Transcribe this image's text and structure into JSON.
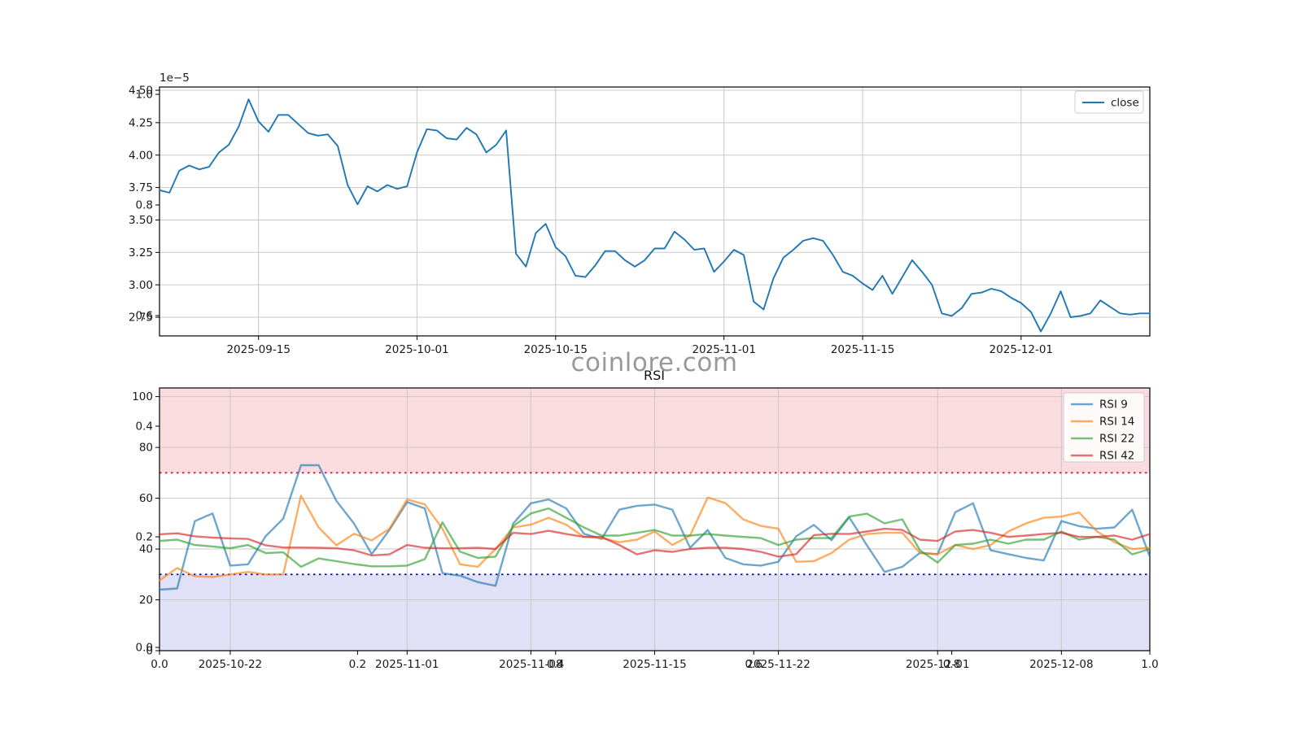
{
  "watermark": "coinlore.com",
  "colors": {
    "close": "#1f77b4",
    "rsi9": "#1f77b4",
    "rsi14": "#ff7f0e",
    "rsi22": "#2ca02c",
    "rsi42": "#d62728",
    "overbought_band": "#fbdcde",
    "oversold_band": "#e0e0f6",
    "overbought_line": "#dc143c",
    "oversold_line": "#0000cd",
    "grid": "#c9c9c9",
    "spine": "#000000",
    "legend_border": "#cccccc",
    "watermark_color": "#999999"
  },
  "overlay_axis": {
    "x_tick_labels": [
      "0.0",
      "0.2",
      "0.4",
      "0.6",
      "0.8",
      "1.0"
    ],
    "y_tick_labels": [
      "1.0",
      "0.8",
      "0.6",
      "0.4",
      "0.2",
      "0.0"
    ]
  },
  "chart_data": [
    {
      "type": "line",
      "title": "",
      "y_offset_label": "1e−5",
      "value_scale": "1e-5",
      "x_range": [
        "2025-09-05",
        "2025-12-14"
      ],
      "x_tick_labels": [
        "2025-09-15",
        "2025-10-01",
        "2025-10-15",
        "2025-11-01",
        "2025-11-15",
        "2025-12-01"
      ],
      "x_tick_day_indices": [
        10,
        26,
        40,
        57,
        71,
        87
      ],
      "y_ticks": [
        2.75,
        3.0,
        3.25,
        3.5,
        3.75,
        4.0,
        4.25,
        4.5
      ],
      "ylim": [
        2.606,
        4.525
      ],
      "grid": true,
      "legend_position": "upper right",
      "series": [
        {
          "name": "close",
          "values": [
            3.73,
            3.71,
            3.88,
            3.92,
            3.89,
            3.91,
            4.02,
            4.08,
            4.22,
            4.43,
            4.26,
            4.18,
            4.31,
            4.31,
            4.24,
            4.17,
            4.15,
            4.16,
            4.07,
            3.77,
            3.62,
            3.76,
            3.72,
            3.77,
            3.74,
            3.76,
            4.02,
            4.2,
            4.19,
            4.13,
            4.12,
            4.21,
            4.16,
            4.02,
            4.08,
            4.19,
            3.24,
            3.14,
            3.4,
            3.47,
            3.29,
            3.22,
            3.07,
            3.06,
            3.15,
            3.26,
            3.26,
            3.19,
            3.14,
            3.19,
            3.28,
            3.28,
            3.41,
            3.35,
            3.27,
            3.28,
            3.1,
            3.18,
            3.27,
            3.23,
            2.87,
            2.81,
            3.05,
            3.21,
            3.27,
            3.34,
            3.36,
            3.34,
            3.23,
            3.1,
            3.07,
            3.01,
            2.96,
            3.07,
            2.93,
            3.06,
            3.19,
            3.1,
            3.0,
            2.78,
            2.76,
            2.82,
            2.93,
            2.94,
            2.97,
            2.95,
            2.9,
            2.86,
            2.79,
            2.64,
            2.78,
            2.95,
            2.75,
            2.76,
            2.78,
            2.88,
            2.83,
            2.78,
            2.77,
            2.78,
            2.78
          ]
        }
      ]
    },
    {
      "type": "line",
      "title": "RSI",
      "x_range": [
        "2025-10-18",
        "2025-12-13"
      ],
      "x_tick_labels": [
        "2025-10-22",
        "2025-11-01",
        "2025-11-08",
        "2025-11-15",
        "2025-11-22",
        "2025-12-01",
        "2025-12-08"
      ],
      "x_tick_day_indices": [
        4,
        14,
        21,
        28,
        35,
        44,
        51
      ],
      "y_ticks": [
        0,
        20,
        40,
        60,
        80,
        100
      ],
      "ylim": [
        0,
        103.4
      ],
      "grid": true,
      "overbought_level": 70,
      "oversold_level": 30,
      "legend_position": "upper right",
      "series": [
        {
          "name": "RSI 9",
          "values": [
            24,
            24.5,
            51,
            54,
            33.5,
            34,
            45,
            52,
            73,
            73,
            59,
            50,
            38,
            47.5,
            58.5,
            56,
            30.5,
            29.5,
            27,
            25.5,
            50,
            58,
            59.5,
            56,
            46,
            44,
            55.5,
            57,
            57.5,
            55.5,
            40.5,
            47.5,
            36.5,
            34,
            33.5,
            35,
            45,
            49.5,
            43.5,
            52.5,
            41.5,
            31,
            33,
            38.5,
            38,
            54.5,
            58,
            39.5,
            38,
            36.5,
            35.5,
            51,
            49,
            48,
            48.5,
            55.5,
            37
          ]
        },
        {
          "name": "RSI 14",
          "values": [
            27.7,
            32.5,
            29.3,
            29,
            30,
            31,
            30,
            30,
            61,
            48.5,
            41.5,
            46,
            43.4,
            48,
            59.5,
            57.6,
            48,
            34,
            33,
            40,
            48.5,
            49.6,
            52.3,
            49.6,
            44.8,
            44.3,
            42.7,
            43.7,
            46.9,
            41.6,
            45.3,
            60.3,
            58.1,
            51.7,
            49.1,
            48,
            35,
            35.2,
            38.4,
            43.7,
            45.9,
            46.4,
            46.4,
            38.4,
            37.9,
            41.6,
            40,
            41.6,
            46.9,
            50.1,
            52.3,
            52.8,
            54.4,
            47,
            42.7,
            40,
            40.5
          ]
        },
        {
          "name": "RSI 22",
          "values": [
            43.2,
            43.7,
            41.6,
            41,
            40.3,
            41.6,
            38.4,
            38.7,
            33,
            36.3,
            35.2,
            34.1,
            33.2,
            33.2,
            33.5,
            36,
            50.5,
            39,
            36.5,
            37,
            49,
            54,
            56,
            52.3,
            48.5,
            45.3,
            45.3,
            46.4,
            47.5,
            45.3,
            45.3,
            45.9,
            45.3,
            44.8,
            44.3,
            41.6,
            43.7,
            44.3,
            44.3,
            52.8,
            53.9,
            50.1,
            51.7,
            39.5,
            34.7,
            41.6,
            42.1,
            43.7,
            42.1,
            43.7,
            43.7,
            46.9,
            43.7,
            44.8,
            43.7,
            37.9,
            40
          ]
        },
        {
          "name": "RSI 42",
          "values": [
            45.8,
            46.2,
            45,
            44.5,
            44.2,
            44,
            41.5,
            40.6,
            40.6,
            40.5,
            40.3,
            39.5,
            37.5,
            37.9,
            41.6,
            40.5,
            40.3,
            40.3,
            40.5,
            40,
            46.4,
            45.9,
            47.2,
            45.9,
            44.8,
            44.8,
            41.6,
            37.9,
            39.5,
            38.9,
            40,
            40.5,
            40.5,
            40,
            38.9,
            37,
            38,
            45.5,
            46,
            45.9,
            46.9,
            48,
            47.5,
            43.7,
            43.2,
            46.9,
            47.5,
            46.4,
            44.8,
            45.3,
            45.9,
            46.4,
            44.8,
            44.8,
            45.3,
            43.7,
            45.9
          ]
        }
      ]
    }
  ]
}
